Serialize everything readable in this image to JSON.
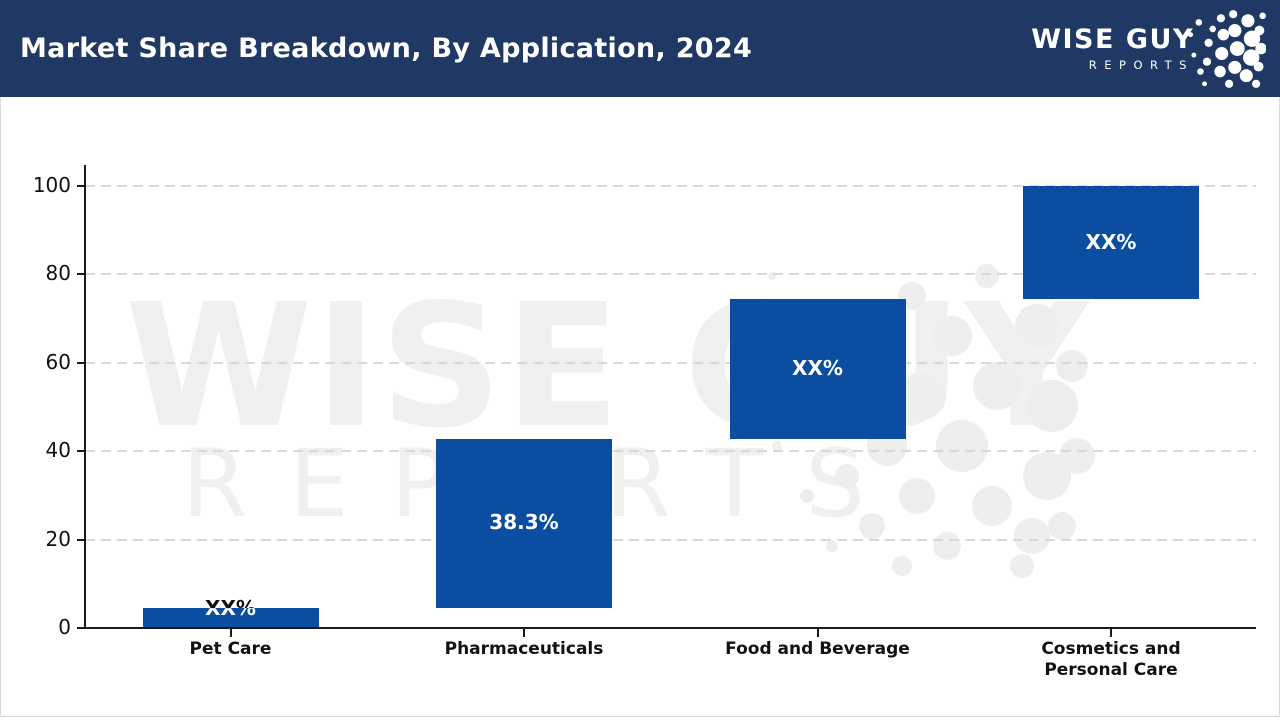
{
  "header": {
    "title": "Market Share Breakdown, By Application, 2024",
    "brand_line1": "WISE GUY",
    "brand_line2": "REPORTS"
  },
  "watermark": {
    "line1": "WISE GUY",
    "line2": "REPORTS"
  },
  "chart_data": {
    "type": "bar",
    "subtype": "floating-waterfall-segments",
    "title": "Market Share Breakdown, By Application, 2024",
    "categories": [
      "Pet Care",
      "Pharmaceuticals",
      "Food and Beverage",
      "Cosmetics and Personal Care"
    ],
    "segments": [
      {
        "category": "Pet Care",
        "start": 0,
        "end": 4.5,
        "label": "XX%"
      },
      {
        "category": "Pharmaceuticals",
        "start": 4.5,
        "end": 42.8,
        "label": "38.3%"
      },
      {
        "category": "Food and Beverage",
        "start": 42.8,
        "end": 74.4,
        "label": "XX%"
      },
      {
        "category": "Cosmetics and Personal Care",
        "start": 74.4,
        "end": 100,
        "label": "XX%"
      }
    ],
    "xlabel": "",
    "ylabel": "",
    "ylim": [
      0,
      100
    ],
    "yticks": [
      0,
      20,
      40,
      60,
      80,
      100
    ],
    "grid": "horizontal-dashed",
    "legend": "none",
    "bar_color": "#0b4da1",
    "bar_label_color": "#ffffff"
  },
  "colors": {
    "header_bg": "#1f3864",
    "bar": "#0b4da1",
    "axis": "#1a1a1a",
    "grid": "#d9d9d9",
    "watermark": "#f0f0f0",
    "background": "#ffffff"
  }
}
